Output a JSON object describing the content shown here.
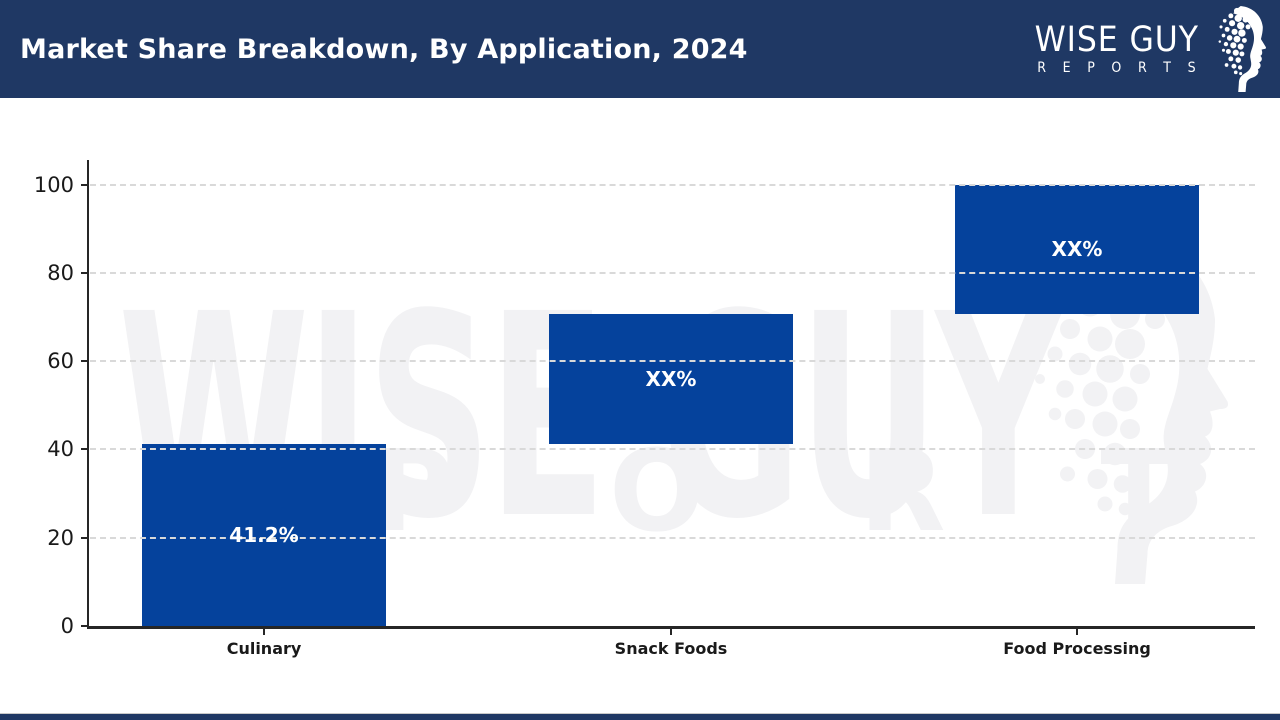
{
  "header": {
    "title": "Market Share Breakdown, By Application, 2024",
    "brand_line1": "WISE GUY",
    "brand_line2": "R E P O R T S"
  },
  "watermark": {
    "line1": "WISE GUY",
    "line2": "P O R T S"
  },
  "chart_data": {
    "type": "bar",
    "subtype": "stacked-waterfall",
    "title": "Market Share Breakdown, By Application, 2024",
    "categories": [
      "Culinary",
      "Snack Foods",
      "Food Processing"
    ],
    "segments": [
      {
        "category": "Culinary",
        "start": 0,
        "end": 41.2,
        "label": "41.2%"
      },
      {
        "category": "Snack Foods",
        "start": 41.2,
        "end": 70.6,
        "label": "XX%"
      },
      {
        "category": "Food Processing",
        "start": 70.6,
        "end": 100,
        "label": "XX%"
      }
    ],
    "yticks": [
      0,
      20,
      40,
      60,
      80,
      100
    ],
    "ylim": [
      0,
      105
    ],
    "grid": true,
    "grid_style": "dashed",
    "legend": null,
    "xlabel": "",
    "ylabel": "",
    "colors": {
      "bar": "#05429c",
      "bar_label": "#ffffff",
      "grid": "#d9d9d9",
      "axis": "#262626",
      "tick_label": "#1a1a1a"
    }
  },
  "colors": {
    "header_bg": "#1f3864",
    "footer_bg": "#1f3864",
    "page_bg": "#ffffff",
    "watermark": "#f2f2f4"
  }
}
